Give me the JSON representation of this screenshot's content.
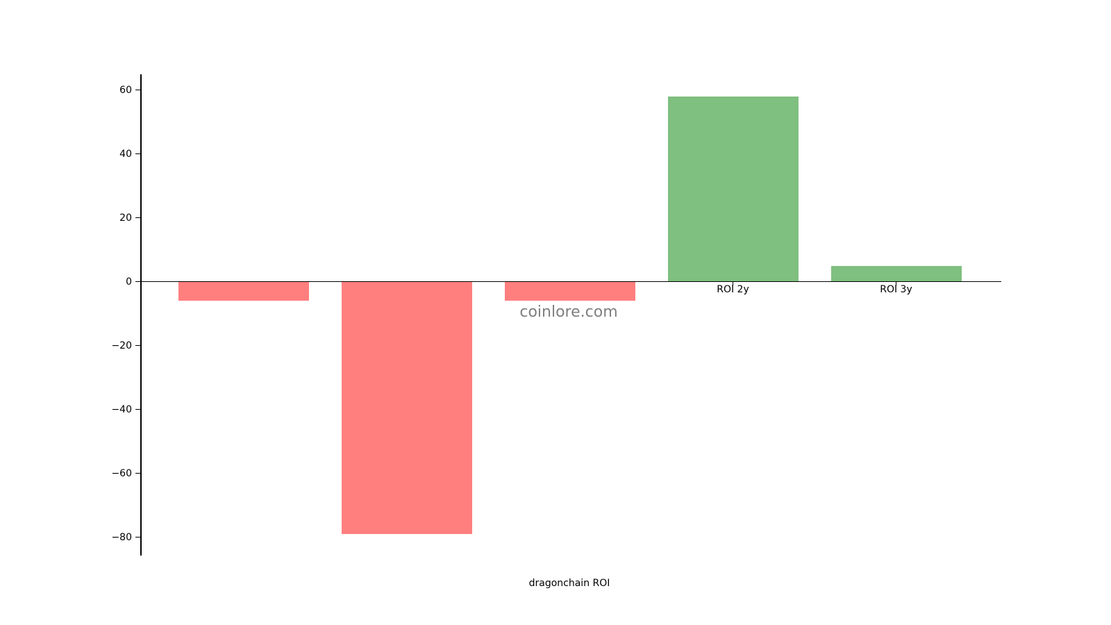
{
  "page": {
    "background": "#ffffff"
  },
  "chart_data": {
    "type": "bar",
    "title": "",
    "xlabel": "dragonchain ROI",
    "ylabel": "",
    "categories": [
      "",
      "",
      "",
      "ROI 2y",
      "ROI 3y"
    ],
    "values": [
      -6,
      -79,
      -6,
      58,
      5
    ],
    "bar_colors": [
      "#ff7f7f",
      "#ff7f7f",
      "#ff7f7f",
      "#7fbf7f",
      "#7fbf7f"
    ],
    "yticks": [
      60,
      40,
      20,
      0,
      -20,
      -40,
      -60,
      -80
    ],
    "ylim": [
      -85.9,
      64.9
    ],
    "grid": false,
    "legend": "none",
    "watermark": {
      "text": "coinlore.com",
      "color": "#7f7f7f"
    },
    "colors": {
      "negative_bar": "#ff7f7f",
      "positive_bar": "#7fbf7f",
      "axis": "#000000",
      "tick_label": "#000000"
    }
  }
}
